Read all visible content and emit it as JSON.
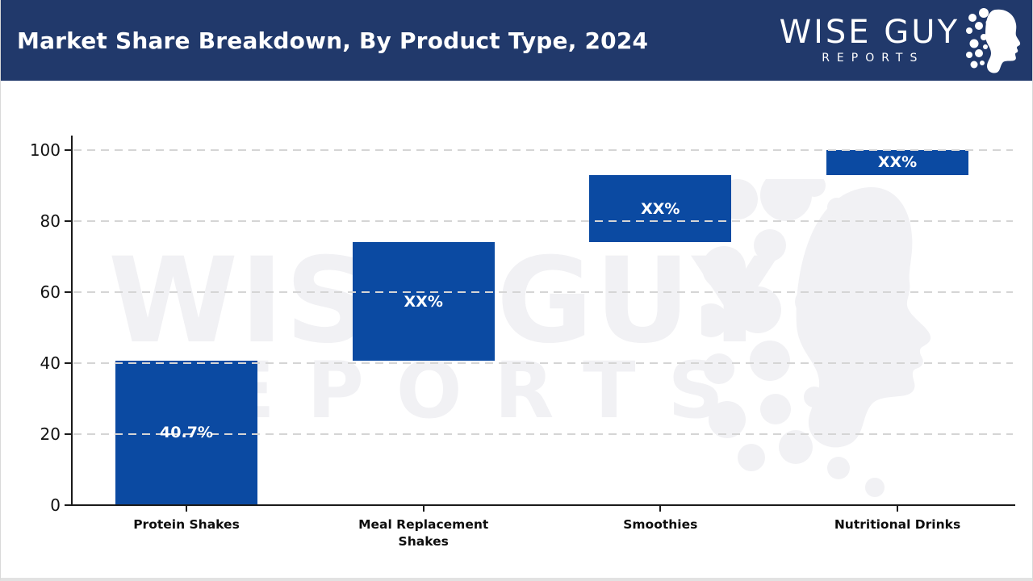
{
  "header": {
    "title": "Market Share Breakdown, By Product Type, 2024",
    "logo_line1": "WISE GUY",
    "logo_line2": "REPORTS",
    "bg_color": "#21396b"
  },
  "watermark": {
    "line1": "WISE GUY",
    "line2": "REPORTS"
  },
  "chart_data": {
    "type": "bar",
    "variant": "floating-waterfall",
    "title": "Market Share Breakdown, By Product Type, 2024",
    "categories": [
      "Protein Shakes",
      "Meal Replacement Shakes",
      "Smoothies",
      "Nutritional Drinks"
    ],
    "segments": [
      {
        "category": "Protein Shakes",
        "start": 0,
        "end": 40.7,
        "label": "40.7%"
      },
      {
        "category": "Meal Replacement Shakes",
        "start": 40.7,
        "end": 74,
        "label": "XX%"
      },
      {
        "category": "Smoothies",
        "start": 74,
        "end": 93,
        "label": "XX%"
      },
      {
        "category": "Nutritional Drinks",
        "start": 93,
        "end": 100,
        "label": "XX%"
      }
    ],
    "y_ticks": [
      0,
      20,
      40,
      60,
      80,
      100
    ],
    "ylim": [
      0,
      100
    ],
    "xlabel": "",
    "ylabel": "",
    "grid": "horizontal-dashed",
    "legend": "none",
    "bar_color": "#0b4aa2",
    "bar_label_color": "#ffffff"
  }
}
